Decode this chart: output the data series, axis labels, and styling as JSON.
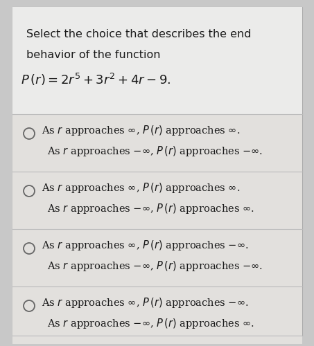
{
  "bg_color": "#c8c8c8",
  "card_bg": "#e8e6e3",
  "option_bg": "#e2e0dd",
  "divider_color": "#bbbbbb",
  "text_color": "#1a1a1a",
  "circle_color": "#666666",
  "title_lines": [
    "Select the choice that describes the end",
    "behavior of the function"
  ],
  "formula": "$P\\,(r) = 2r^5 + 3r^2 + 4r - 9.$",
  "options": [
    {
      "line1": "As $r$ approaches $\\infty$, $P\\,(r)$ approaches $\\infty$.",
      "line2": "As $r$ approaches $-\\infty$, $P\\,(r)$ approaches $-\\infty$."
    },
    {
      "line1": "As $r$ approaches $\\infty$, $P\\,(r)$ approaches $\\infty$.",
      "line2": "As $r$ approaches $-\\infty$, $P\\,(r)$ approaches $\\infty$."
    },
    {
      "line1": "As $r$ approaches $\\infty$, $P\\,(r)$ approaches $-\\infty$.",
      "line2": "As $r$ approaches $-\\infty$, $P\\,(r)$ approaches $-\\infty$."
    },
    {
      "line1": "As $r$ approaches $\\infty$, $P\\,(r)$ approaches $-\\infty$.",
      "line2": "As $r$ approaches $-\\infty$, $P\\,(r)$ approaches $\\infty$."
    }
  ],
  "title_fontsize": 11.5,
  "formula_fontsize": 13,
  "option_fontsize": 10.5
}
